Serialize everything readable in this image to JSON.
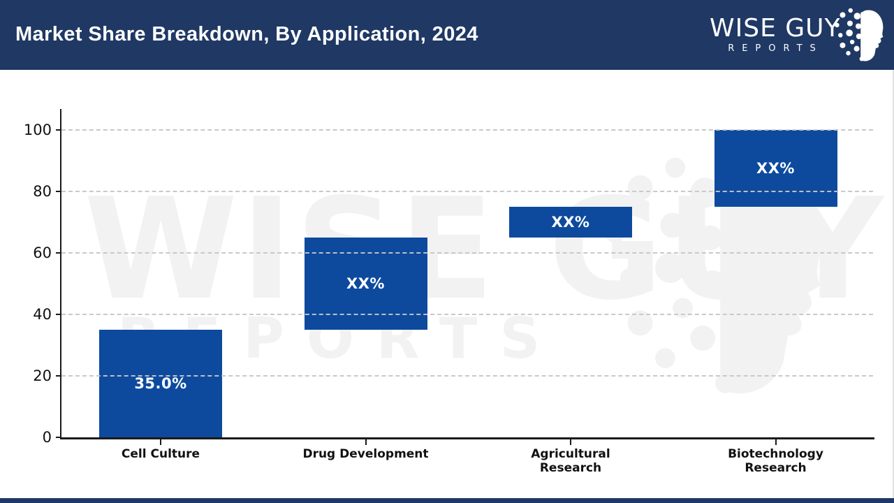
{
  "header": {
    "title": "Market Share Breakdown, By Application, 2024",
    "logo": {
      "line1": "WISE GUY",
      "line2": "REPORTS"
    }
  },
  "watermark": {
    "line1": "WISE GUY",
    "line2": "REPORTS"
  },
  "colors": {
    "header_bg": "#1f3864",
    "footer_bg": "#1f3864",
    "bar": "#0d4a9e",
    "bar_label": "#ffffff",
    "grid": "#c7c7c7",
    "axis": "#1a1a1a",
    "watermark": "#f2f2f2"
  },
  "chart_data": {
    "type": "bar",
    "subtype": "floating-waterfall",
    "title": "Market Share Breakdown, By Application, 2024",
    "xlabel": "",
    "ylabel": "",
    "ylim": [
      0,
      105
    ],
    "yticks": [
      0,
      20,
      40,
      60,
      80,
      100
    ],
    "grid": "horizontal-dashed",
    "legend": "none",
    "categories": [
      "Cell Culture",
      "Drug Development",
      "Agricultural Research",
      "Biotechnology Research"
    ],
    "segments": [
      {
        "category": "Cell Culture",
        "tick_label": "Cell Culture",
        "start": 0,
        "end": 35,
        "label": "35.0%"
      },
      {
        "category": "Drug Development",
        "tick_label": "Drug Development",
        "start": 35,
        "end": 65,
        "label": "XX%"
      },
      {
        "category": "Agricultural Research",
        "tick_label": "Agricultural\nResearch",
        "start": 65,
        "end": 75,
        "label": "XX%"
      },
      {
        "category": "Biotechnology Research",
        "tick_label": "Biotechnology\nResearch",
        "start": 75,
        "end": 100,
        "label": "XX%"
      }
    ]
  }
}
